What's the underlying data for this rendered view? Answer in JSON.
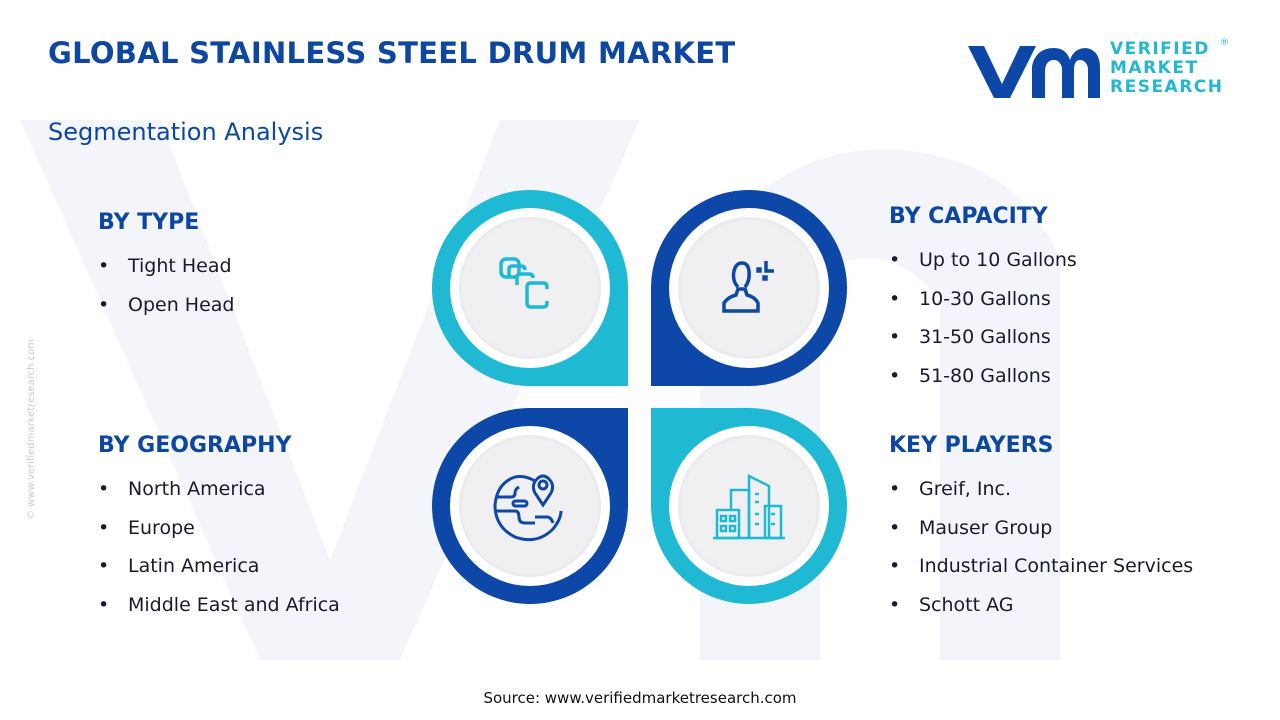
{
  "header": {
    "title": "GLOBAL STAINLESS STEEL DRUM MARKET",
    "subtitle": "Segmentation Analysis"
  },
  "logo": {
    "line1": "VERIFIED",
    "line2": "MARKET",
    "line3": "RESEARCH",
    "registered": "®"
  },
  "side_watermark": "© www.verifiedmarketresearch.com",
  "segments": {
    "type": {
      "heading": "BY TYPE",
      "items": [
        "Tight Head",
        "Open Head"
      ]
    },
    "capacity": {
      "heading": "BY CAPACITY",
      "items": [
        "Up to 10 Gallons",
        "10-30 Gallons",
        "31-50 Gallons",
        "51-80 Gallons"
      ]
    },
    "geography": {
      "heading": "BY GEOGRAPHY",
      "items": [
        "North America",
        "Europe",
        "Latin America",
        "Middle East and Africa"
      ]
    },
    "players": {
      "heading": "KEY PLAYERS",
      "items": [
        "Greif, Inc.",
        "Mauser Group",
        "Industrial Container Services",
        "Schott AG"
      ]
    }
  },
  "colors": {
    "navy": "#0d47a8",
    "cyan": "#1fb9d3",
    "title": "#0d47a1"
  },
  "icons": [
    "stacked-drums-icon",
    "user-capacity-icon",
    "globe-location-icon",
    "buildings-icon"
  ],
  "footer": {
    "source": "Source: www.verifiedmarketresearch.com"
  }
}
